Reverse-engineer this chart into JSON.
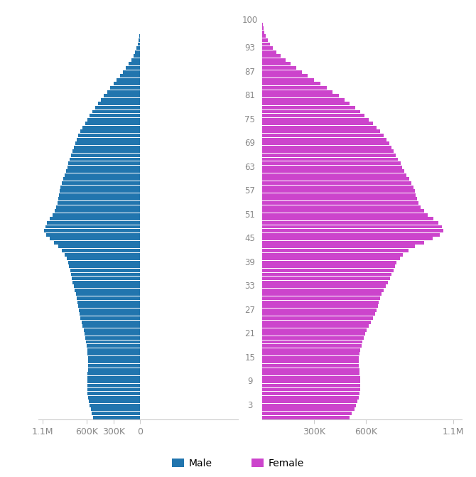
{
  "ages": [
    0,
    1,
    2,
    3,
    4,
    5,
    6,
    7,
    8,
    9,
    10,
    11,
    12,
    13,
    14,
    15,
    16,
    17,
    18,
    19,
    20,
    21,
    22,
    23,
    24,
    25,
    26,
    27,
    28,
    29,
    30,
    31,
    32,
    33,
    34,
    35,
    36,
    37,
    38,
    39,
    40,
    41,
    42,
    43,
    44,
    45,
    46,
    47,
    48,
    49,
    50,
    51,
    52,
    53,
    54,
    55,
    56,
    57,
    58,
    59,
    60,
    61,
    62,
    63,
    64,
    65,
    66,
    67,
    68,
    69,
    70,
    71,
    72,
    73,
    74,
    75,
    76,
    77,
    78,
    79,
    80,
    81,
    82,
    83,
    84,
    85,
    86,
    87,
    88,
    89,
    90,
    91,
    92,
    93,
    94,
    95,
    96,
    97,
    98,
    99,
    100
  ],
  "male": [
    530000,
    545000,
    558000,
    570000,
    578000,
    585000,
    591000,
    595000,
    596000,
    595000,
    593000,
    591000,
    589000,
    588000,
    587000,
    588000,
    591000,
    596000,
    602000,
    608000,
    615000,
    623000,
    634000,
    648000,
    662000,
    675000,
    685000,
    693000,
    700000,
    706000,
    715000,
    726000,
    738000,
    750000,
    762000,
    773000,
    782000,
    790000,
    800000,
    812000,
    830000,
    850000,
    880000,
    920000,
    970000,
    1020000,
    1060000,
    1080000,
    1070000,
    1050000,
    1020000,
    990000,
    965000,
    945000,
    930000,
    920000,
    912000,
    905000,
    895000,
    882000,
    865000,
    848000,
    835000,
    822000,
    808000,
    793000,
    778000,
    763000,
    748000,
    733000,
    715000,
    695000,
    672000,
    648000,
    622000,
    595000,
    567000,
    538000,
    508000,
    476000,
    443000,
    408000,
    373000,
    337000,
    300000,
    263000,
    228000,
    194000,
    161000,
    130000,
    102000,
    77000,
    56000,
    39000,
    26000,
    16000,
    9500,
    5500,
    3000,
    1400,
    500
  ],
  "female": [
    504000,
    518000,
    531000,
    543000,
    551000,
    557000,
    562000,
    566000,
    567000,
    566000,
    564000,
    562000,
    560000,
    559000,
    558000,
    559000,
    562000,
    567000,
    572000,
    578000,
    585000,
    593000,
    603000,
    616000,
    629000,
    641000,
    651000,
    659000,
    666000,
    672000,
    680000,
    690000,
    702000,
    714000,
    726000,
    737000,
    747000,
    756000,
    765000,
    776000,
    793000,
    813000,
    843000,
    882000,
    932000,
    982000,
    1023000,
    1045000,
    1035000,
    1015000,
    985000,
    956000,
    932000,
    913000,
    900000,
    892000,
    886000,
    882000,
    874000,
    862000,
    847000,
    832000,
    820000,
    809000,
    797000,
    783000,
    770000,
    758000,
    746000,
    733000,
    718000,
    701000,
    681000,
    660000,
    638000,
    615000,
    590000,
    564000,
    536000,
    506000,
    475000,
    442000,
    408000,
    373000,
    337000,
    301000,
    265000,
    231000,
    198000,
    166000,
    136000,
    109000,
    85000,
    64000,
    47000,
    33000,
    22000,
    14000,
    8500,
    4700,
    1800
  ],
  "male_color": "#2175AE",
  "female_color": "#CC44CC",
  "bar_height": 0.88,
  "xlim": 1150000,
  "x_ticks": [
    -1100000,
    -600000,
    -300000,
    0,
    300000,
    600000,
    1100000
  ],
  "x_tick_labels": [
    "1.1M",
    "600K",
    "300K",
    "0",
    "300K",
    "600K",
    "1.1M"
  ],
  "y_tick_positions": [
    3,
    9,
    15,
    21,
    27,
    33,
    39,
    45,
    51,
    57,
    63,
    69,
    75,
    81,
    87,
    93,
    100
  ],
  "background_color": "#ffffff",
  "male_label": "Male",
  "female_label": "Female"
}
